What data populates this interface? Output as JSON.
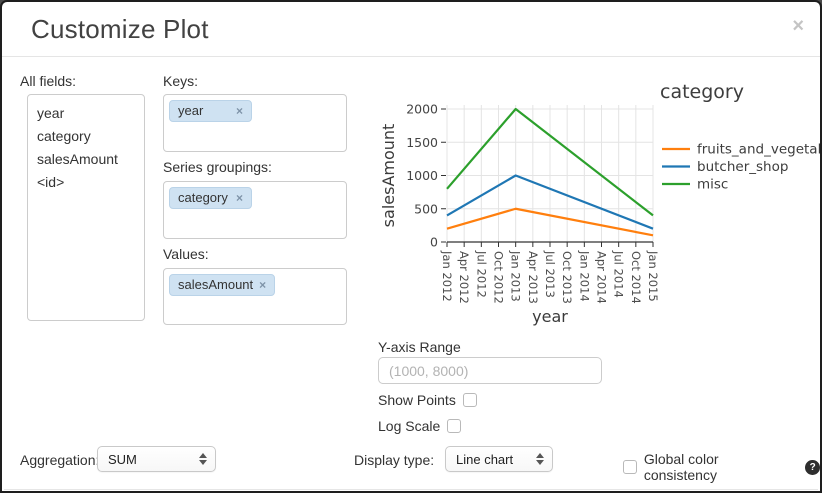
{
  "dialog": {
    "title": "Customize Plot",
    "close_icon": "×"
  },
  "fields_panel": {
    "label": "All fields:",
    "items": [
      "year",
      "category",
      "salesAmount",
      "<id>"
    ]
  },
  "mapping": {
    "keys": {
      "label": "Keys:",
      "tokens": [
        {
          "text": "year",
          "remove_icon": "×"
        }
      ]
    },
    "series": {
      "label": "Series groupings:",
      "tokens": [
        {
          "text": "category",
          "remove_icon": "×"
        }
      ]
    },
    "values": {
      "label": "Values:",
      "tokens": [
        {
          "text": "salesAmount",
          "remove_icon": "×"
        }
      ]
    }
  },
  "chart_data": {
    "type": "line",
    "xlabel": "year",
    "ylabel": "salesAmount",
    "legend_title": "category",
    "x_ticks": [
      "Jan 2012",
      "Apr 2012",
      "Jul 2012",
      "Oct 2012",
      "Jan 2013",
      "Apr 2013",
      "Jul 2013",
      "Oct 2013",
      "Jan 2014",
      "Apr 2014",
      "Jul 2014",
      "Oct 2014",
      "Jan 2015"
    ],
    "y_ticks": [
      0,
      500,
      1000,
      1500,
      2000
    ],
    "ylim": [
      0,
      2000
    ],
    "grid": true,
    "legend_position": "right",
    "series": [
      {
        "name": "fruits_and_vegetables",
        "color": "#ff7f0e",
        "x": [
          "Jan 2012",
          "Jan 2013",
          "Jan 2015"
        ],
        "x_tick_index": [
          0,
          4,
          12
        ],
        "values": [
          200,
          500,
          100
        ]
      },
      {
        "name": "butcher_shop",
        "color": "#1f77b4",
        "x": [
          "Jan 2012",
          "Jan 2013",
          "Jan 2015"
        ],
        "x_tick_index": [
          0,
          4,
          12
        ],
        "values": [
          400,
          1000,
          200
        ]
      },
      {
        "name": "misc",
        "color": "#2ca02c",
        "x": [
          "Jan 2012",
          "Jan 2013",
          "Jan 2015"
        ],
        "x_tick_index": [
          0,
          4,
          12
        ],
        "values": [
          800,
          2000,
          400
        ]
      }
    ]
  },
  "options": {
    "y_axis_range": {
      "label": "Y-axis Range",
      "placeholder": "(1000, 8000)",
      "value": ""
    },
    "show_points": {
      "label": "Show Points",
      "checked": false
    },
    "log_scale": {
      "label": "Log Scale",
      "checked": false
    }
  },
  "footer": {
    "aggregation": {
      "label": "Aggregation:",
      "value": "SUM"
    },
    "display_type": {
      "label": "Display type:",
      "value": "Line chart"
    },
    "global_color": {
      "label": "Global color consistency",
      "checked": false,
      "help_icon": "?"
    }
  }
}
